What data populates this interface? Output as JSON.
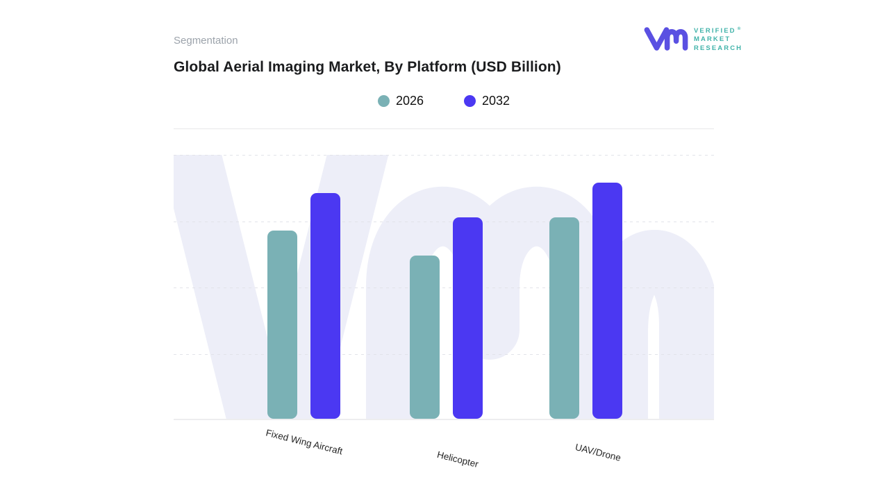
{
  "header": {
    "eyebrow": "Segmentation",
    "title": "Global Aerial Imaging Market, By Platform (USD Billion)"
  },
  "logo": {
    "name": "verified-market-research",
    "lines": [
      "VERIFIED",
      "MARKET",
      "RESEARCH"
    ],
    "registered": "®",
    "mark_color": "#5a50e2",
    "text_color": "#41b3aa"
  },
  "legend": [
    {
      "label": "2026",
      "color": "#7ab1b5"
    },
    {
      "label": "2032",
      "color": "#4b38f2"
    }
  ],
  "chart_data": {
    "type": "bar",
    "title": "Global Aerial Imaging Market, By Platform (USD Billion)",
    "categories": [
      "Fixed Wing Aircraft",
      "Helicopter",
      "UAV/Drone"
    ],
    "series": [
      {
        "name": "2026",
        "color": "#7ab1b5",
        "values": [
          2.85,
          2.47,
          3.05
        ]
      },
      {
        "name": "2032",
        "color": "#4b38f2",
        "values": [
          3.42,
          3.05,
          3.58
        ]
      }
    ],
    "xlabel": "",
    "ylabel": "",
    "ylim": [
      0,
      4
    ],
    "y_tick_labels_visible": false,
    "grid": "horizontal-dashed",
    "gridline_interval": 1,
    "legend_position": "top-center",
    "x_label_rotation_deg": 14,
    "watermark": "vmr-monogram"
  },
  "colors": {
    "background": "#ffffff",
    "title_text": "#1b1c1e",
    "eyebrow_text": "#9ca3ab",
    "axis_label_text": "#262626",
    "gridline": "#e2e3e9",
    "baseline": "#ededef",
    "separator": "#e8e8ea",
    "watermark": "#edeef8"
  }
}
